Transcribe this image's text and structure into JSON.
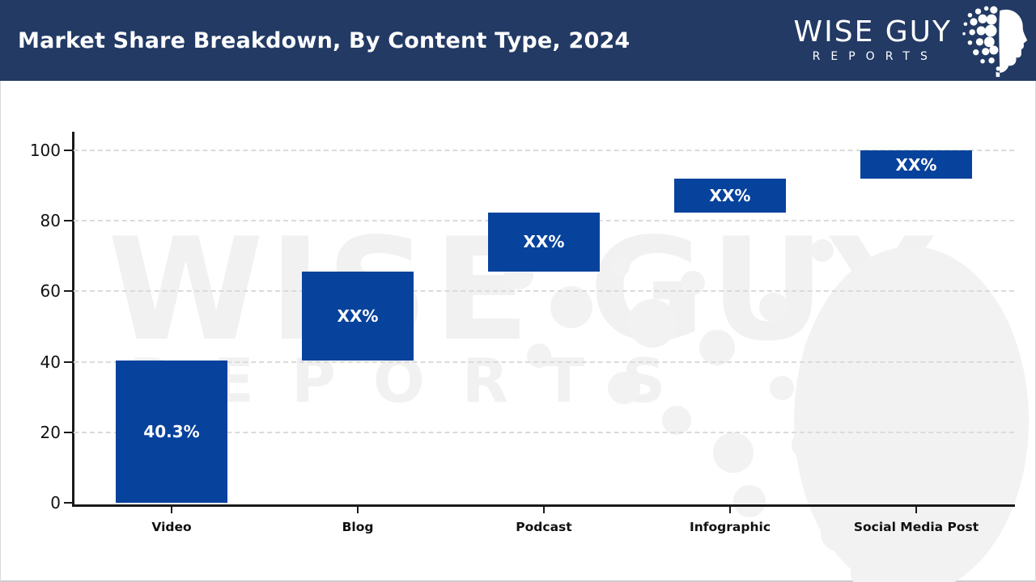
{
  "header": {
    "title": "Market Share Breakdown, By Content Type, 2024",
    "logo": {
      "primary": "WISE GUY",
      "secondary": "REPORTS"
    }
  },
  "watermark": {
    "primary": "WISE GUY",
    "secondary": "REPORTS"
  },
  "chart_data": {
    "type": "bar",
    "variant": "waterfall",
    "title": "Market Share Breakdown, By Content Type, 2024",
    "categories": [
      "Video",
      "Blog",
      "Podcast",
      "Infographic",
      "Social Media Post"
    ],
    "segments": [
      {
        "category": "Video",
        "start": 0,
        "end": 40.3,
        "label": "40.3%"
      },
      {
        "category": "Blog",
        "start": 40.3,
        "end": 65.7,
        "label": "XX%"
      },
      {
        "category": "Podcast",
        "start": 65.7,
        "end": 82.4,
        "label": "XX%"
      },
      {
        "category": "Infographic",
        "start": 82.4,
        "end": 91.9,
        "label": "XX%"
      },
      {
        "category": "Social Media Post",
        "start": 91.9,
        "end": 100,
        "label": "XX%"
      }
    ],
    "xlabel": "",
    "ylabel": "",
    "yticks": [
      0,
      20,
      40,
      60,
      80,
      100
    ],
    "ylim": [
      0,
      105
    ],
    "grid": "horizontal-dashed",
    "legend": "none",
    "colors": {
      "bar": "#07429C",
      "bar_label": "#FFFFFF",
      "grid": "#DBDBDB",
      "axis": "#1A1A1A",
      "tick_label": "#111111",
      "header_bg": "#223A64",
      "watermark": "#F1F1F1"
    }
  }
}
